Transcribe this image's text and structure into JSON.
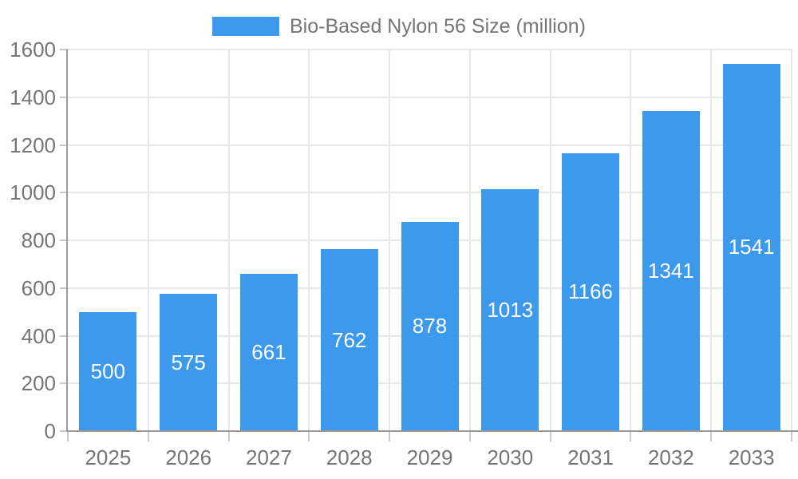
{
  "chart_data": {
    "type": "bar",
    "title": "Bio-Based Nylon 56 Size (million)",
    "categories": [
      "2025",
      "2026",
      "2027",
      "2028",
      "2029",
      "2030",
      "2031",
      "2032",
      "2033"
    ],
    "values": [
      500,
      575,
      661,
      762,
      878,
      1013,
      1166,
      1341,
      1541
    ],
    "series": [
      {
        "name": "Bio-Based Nylon 56 Size (million)",
        "values": [
          500,
          575,
          661,
          762,
          878,
          1013,
          1166,
          1341,
          1541
        ]
      }
    ],
    "xlabel": "",
    "ylabel": "",
    "ylim": [
      0,
      1600
    ],
    "ytick_step": 200,
    "yticks": [
      0,
      200,
      400,
      600,
      800,
      1000,
      1200,
      1400,
      1600
    ],
    "grid": true,
    "legend_position": "top-center",
    "value_label_position": "inside-center",
    "colors": {
      "bar": "#3C99EC",
      "grid": "#e7e7e7",
      "axis": "#999999",
      "tick": "#c9c9c9",
      "label": "#757575",
      "value_label": "#ffffff",
      "background": "#ffffff"
    }
  }
}
